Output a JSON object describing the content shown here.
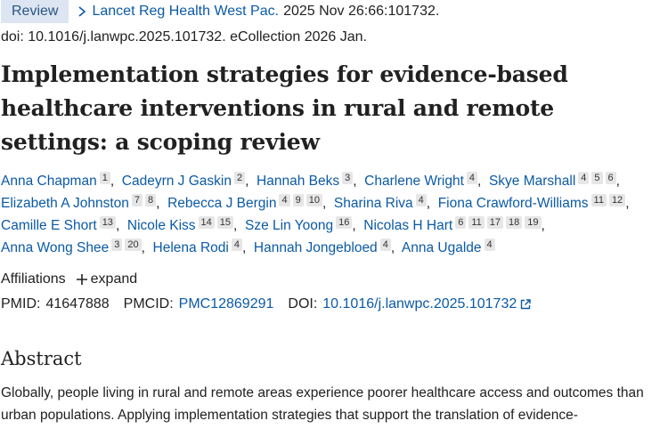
{
  "badge": "Review",
  "journal": "Lancet Reg Health West Pac.",
  "citation": "2025 Nov 26:66:101732.",
  "doi_line": "doi: 10.1016/j.lanwpc.2025.101732. eCollection 2026 Jan.",
  "title": "Implementation strategies for evidence-based healthcare interventions in rural and remote settings: a scoping review",
  "authors": [
    {
      "name": "Anna Chapman",
      "affs": [
        "1"
      ]
    },
    {
      "name": "Cadeyrn J Gaskin",
      "affs": [
        "2"
      ]
    },
    {
      "name": "Hannah Beks",
      "affs": [
        "3"
      ]
    },
    {
      "name": "Charlene Wright",
      "affs": [
        "4"
      ]
    },
    {
      "name": "Skye Marshall",
      "affs": [
        "4",
        "5",
        "6"
      ]
    },
    {
      "name": "Elizabeth A Johnston",
      "affs": [
        "7",
        "8"
      ]
    },
    {
      "name": "Rebecca J Bergin",
      "affs": [
        "4",
        "9",
        "10"
      ]
    },
    {
      "name": "Sharina Riva",
      "affs": [
        "4"
      ]
    },
    {
      "name": "Fiona Crawford-Williams",
      "affs": [
        "11",
        "12"
      ]
    },
    {
      "name": "Camille E Short",
      "affs": [
        "13"
      ]
    },
    {
      "name": "Nicole Kiss",
      "affs": [
        "14",
        "15"
      ]
    },
    {
      "name": "Sze Lin Yoong",
      "affs": [
        "16"
      ]
    },
    {
      "name": "Nicolas H Hart",
      "affs": [
        "6",
        "11",
        "17",
        "18",
        "19"
      ]
    },
    {
      "name": "Anna Wong Shee",
      "affs": [
        "3",
        "20"
      ]
    },
    {
      "name": "Helena Rodi",
      "affs": [
        "4"
      ]
    },
    {
      "name": "Hannah Jongebloed",
      "affs": [
        "4"
      ]
    },
    {
      "name": "Anna Ugalde",
      "affs": [
        "4"
      ]
    }
  ],
  "affiliations_label": "Affiliations",
  "expand": "expand",
  "identifiers": {
    "pmid_label": "PMID:",
    "pmid": "41647888",
    "pmcid_label": "PMCID:",
    "pmcid": "PMC12869291",
    "doi_label": "DOI:",
    "doi": "10.1016/j.lanwpc.2025.101732"
  },
  "abstract_heading": "Abstract",
  "abstract_text": "Globally, people living in rural and remote areas experience poorer healthcare access and outcomes than urban populations. Applying implementation strategies that support the translation of evidence-"
}
